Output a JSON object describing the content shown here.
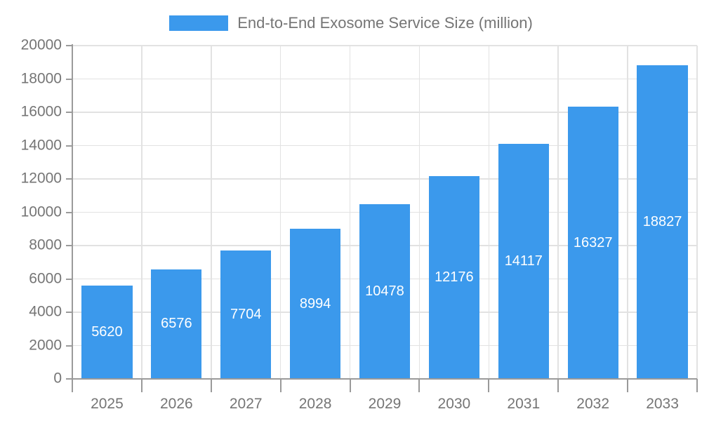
{
  "legend": {
    "label": "End-to-End Exosome Service Size (million)"
  },
  "chart_data": {
    "type": "bar",
    "title": "End-to-End Exosome Service Size (million)",
    "categories": [
      "2025",
      "2026",
      "2027",
      "2028",
      "2029",
      "2030",
      "2031",
      "2032",
      "2033"
    ],
    "series": [
      {
        "name": "End-to-End Exosome Service Size (million)",
        "values": [
          5620,
          6576,
          7704,
          8994,
          10478,
          12176,
          14117,
          16327,
          18827
        ]
      }
    ],
    "xlabel": "",
    "ylabel": "",
    "ylim": [
      0,
      20000
    ],
    "ytick_step": 2000,
    "grid": true,
    "legend_position": "top-center",
    "value_labels": "inside-center"
  },
  "colors": {
    "bar": "#3B99EC",
    "axis": "#9a9a9a",
    "grid": "#e2e2e2",
    "text": "#757575",
    "value_label": "#ffffff",
    "background": "#ffffff"
  }
}
